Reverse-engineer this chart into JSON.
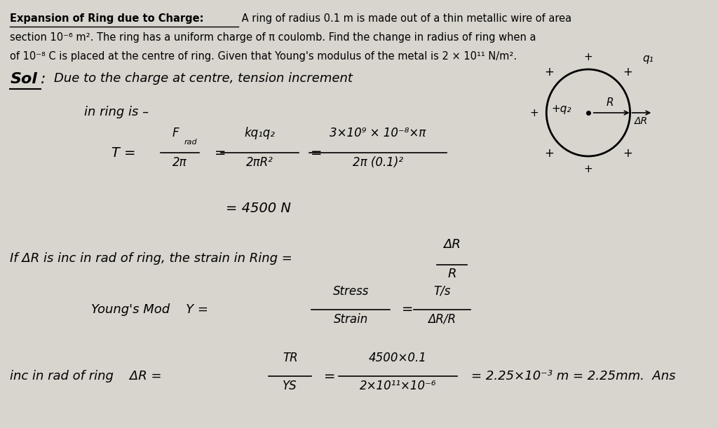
{
  "background_color": "#d8d4ce",
  "title_text": "Expansion of Ring due to Charge:",
  "title_suffix": " A ring of radius 0.1 m is made out of a thin metallic wire of area",
  "line2": "section 10⁻⁶ m². The ring has a uniform charge of π coulomb. Find the change in radius of ring when a",
  "line3": "of 10⁻⁸ C is placed at the centre of ring. Given that Young's modulus of the metal is 2 × 10¹¹ N/m².",
  "fig_width": 10.24,
  "fig_height": 6.11,
  "dpi": 100
}
